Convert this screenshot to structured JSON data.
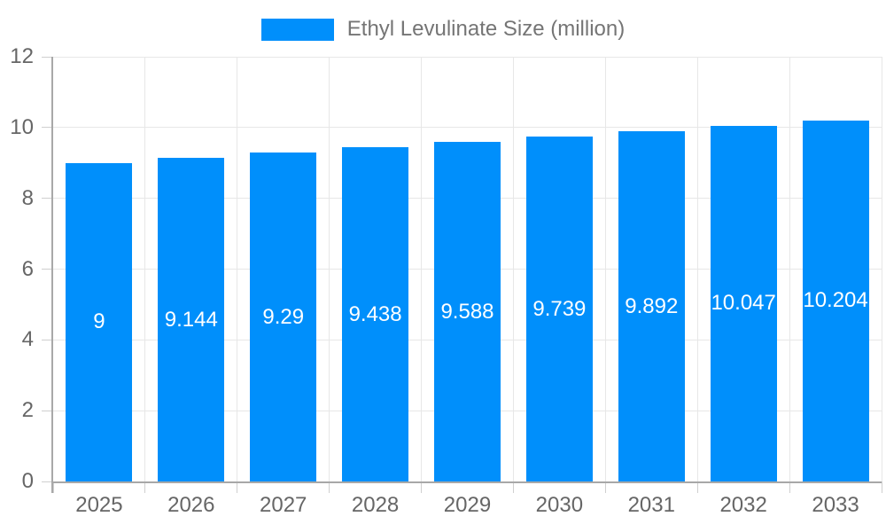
{
  "chart_data": {
    "type": "bar",
    "legend": {
      "position": "top",
      "label": "Ethyl Levulinate Size (million)"
    },
    "categories": [
      "2025",
      "2026",
      "2027",
      "2028",
      "2029",
      "2030",
      "2031",
      "2032",
      "2033"
    ],
    "series": [
      {
        "name": "Ethyl Levulinate Size (million)",
        "values": [
          9,
          9.144,
          9.29,
          9.438,
          9.588,
          9.739,
          9.892,
          10.047,
          10.204
        ],
        "labels": [
          "9",
          "9.144",
          "9.29",
          "9.438",
          "9.588",
          "9.739",
          "9.892",
          "10.047",
          "10.204"
        ]
      }
    ],
    "ylim": [
      0,
      12
    ],
    "yticks": [
      0,
      2,
      4,
      6,
      8,
      10,
      12
    ],
    "ytick_labels": [
      "0",
      "2",
      "4",
      "6",
      "8",
      "10",
      "12"
    ],
    "grid": true,
    "colors": {
      "bar": "#008FFB",
      "grid": "#e7e7e7",
      "axis_line": "#a8a8a8",
      "tick": "#cfcfcf",
      "axis_label": "#666666",
      "legend_text": "#757575",
      "value_label": "#ffffff",
      "background": "#ffffff"
    }
  }
}
